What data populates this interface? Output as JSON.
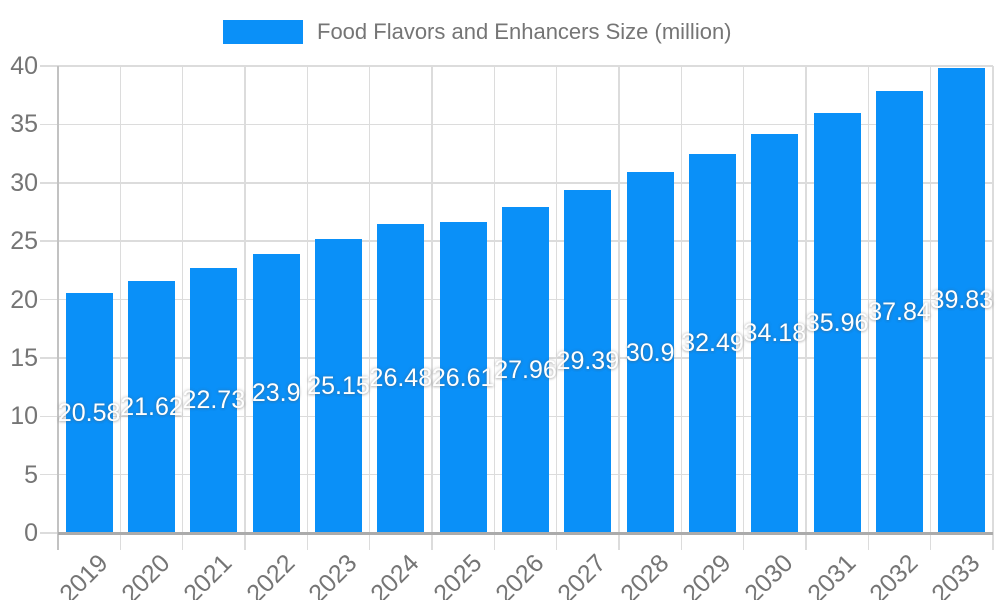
{
  "chart_data": {
    "type": "bar",
    "title": "Food Flavors and Enhancers Size (million)",
    "legend": {
      "label": "Food Flavors and Enhancers Size (million)",
      "position": "top-center",
      "swatch_color": "#0A90F8"
    },
    "categories": [
      "2019",
      "2020",
      "2021",
      "2022",
      "2023",
      "2024",
      "2025",
      "2026",
      "2027",
      "2028",
      "2029",
      "2030",
      "2031",
      "2032",
      "2033"
    ],
    "series": [
      {
        "name": "Food Flavors and Enhancers Size (million)",
        "color": "#0A90F8",
        "values": [
          20.58,
          21.62,
          22.73,
          23.9,
          25.15,
          26.48,
          26.61,
          27.96,
          29.39,
          30.9,
          32.49,
          34.18,
          35.96,
          37.84,
          39.83
        ],
        "value_labels": [
          "20.58",
          "21.62",
          "22.73",
          "23.9",
          "25.15",
          "26.48",
          "26.61",
          "27.96",
          "29.39",
          "30.9",
          "32.49",
          "34.18",
          "35.96",
          "37.84",
          "39.83"
        ]
      }
    ],
    "xlabel": "",
    "ylabel": "",
    "ylim": [
      0,
      40
    ],
    "yticks": [
      0,
      5,
      10,
      15,
      20,
      25,
      30,
      35,
      40
    ],
    "grid": true,
    "x_tick_rotation_deg": -45,
    "colors": {
      "bar": "#0A90F8",
      "value_label_text": "#ffffff",
      "axis_text": "#757575",
      "gridline": "#dcdcdc",
      "axis_baseline": "#ababab"
    }
  }
}
